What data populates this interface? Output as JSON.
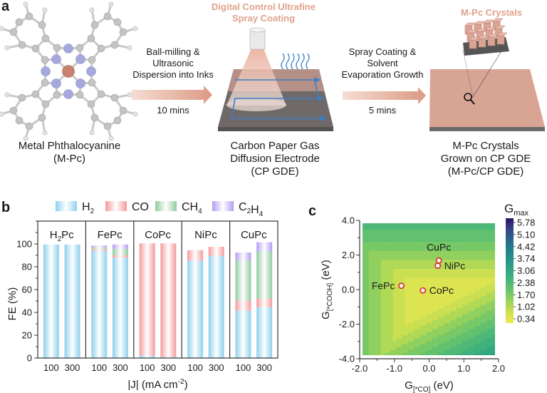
{
  "panel_a": {
    "letter": "a",
    "molecule_caption_line1": "Metal Phthalocyanine",
    "molecule_caption_line2": "(M-Pc)",
    "step1_line1": "Ball-milling &",
    "step1_line2": "Ultrasonic",
    "step1_line3": "Dispersion into Inks",
    "step1_time": "10 mins",
    "spray_title_line1": "Digital Control Ultrafine",
    "spray_title_line2": "Spray Coating",
    "gde_caption_line1": "Carbon Paper Gas",
    "gde_caption_line2": "Diffusion Electrode",
    "gde_caption_line3": "(CP GDE)",
    "step2_line1": "Spray Coating &",
    "step2_line2": "Solvent",
    "step2_line3": "Evaporation Growth",
    "step2_time": "5 mins",
    "crystal_title": "M-Pc Crystals",
    "crystal_caption_line1": "M-Pc Crystals",
    "crystal_caption_line2": "Grown on CP GDE",
    "crystal_caption_line3": "(M-Pc/CP GDE)",
    "colors": {
      "accent": "#e0a38c",
      "metal": "#c8826e",
      "nitrogen": "#a6a8dd",
      "carbon": "#c4c4c4",
      "hydrogen": "#e2e2e2",
      "paper_dark": "#6e6a6a",
      "paper_pink": "#d9a391",
      "flow_blue": "#3d7fc4"
    }
  },
  "chart_data": [
    {
      "panel": "b",
      "type": "bar",
      "stacked": true,
      "title": "",
      "xlabel": "|J| (mA cm⁻²)",
      "ylabel": "FE (%)",
      "ylim": [
        0,
        120
      ],
      "yticks": [
        "0",
        "20",
        "40",
        "60",
        "80",
        "100"
      ],
      "groups": [
        "H₂Pc",
        "FePc",
        "CoPc",
        "NiPc",
        "CuPc"
      ],
      "categories": [
        "100",
        "300",
        "100",
        "300",
        "100",
        "300",
        "100",
        "300",
        "100",
        "300"
      ],
      "legend": {
        "placement": "top",
        "entries": [
          "H₂",
          "CO",
          "CH₄",
          "C₂H₄"
        ]
      },
      "series": [
        {
          "name": "H2",
          "color": "#8fd0ef",
          "values": [
            99.5,
            99.5,
            94,
            88,
            2,
            1,
            85.5,
            89.5,
            41.5,
            44.5
          ]
        },
        {
          "name": "CO",
          "color": "#f59a9a",
          "values": [
            0,
            0,
            1.5,
            2,
            98.5,
            99.5,
            9,
            8,
            9,
            7.5
          ]
        },
        {
          "name": "CH4",
          "color": "#8fcc9e",
          "values": [
            0,
            0,
            1.5,
            5.5,
            0,
            0,
            0,
            0,
            35,
            41.5
          ]
        },
        {
          "name": "C2H4",
          "color": "#b49cf2",
          "values": [
            0,
            0,
            1.5,
            4,
            0,
            0,
            0,
            0,
            7,
            8
          ]
        }
      ]
    },
    {
      "panel": "c",
      "type": "heatmap",
      "title": "",
      "xlabel": "G[*CO] (eV)",
      "ylabel": "G[*COOH] (eV)",
      "xlim": [
        -2.0,
        2.0
      ],
      "ylim": [
        -4.0,
        4.0
      ],
      "xticks": [
        "-2.0",
        "-1.0",
        "0.0",
        "1.0",
        "2.0"
      ],
      "yticks": [
        "-4.0",
        "-2.0",
        "0.0",
        "2.0",
        "4.0"
      ],
      "colorbar": {
        "label": "Gmax",
        "ticks": [
          "5.78",
          "5.10",
          "4.42",
          "3.74",
          "3.06",
          "2.38",
          "1.70",
          "1.02",
          "0.34"
        ],
        "range": [
          0.0,
          6.1
        ],
        "colormap": "viridis_r"
      },
      "points": [
        {
          "name": "CuPc",
          "x": 0.28,
          "y": 1.68
        },
        {
          "name": "NiPc",
          "x": 0.25,
          "y": 1.38
        },
        {
          "name": "FePc",
          "x": -0.8,
          "y": 0.22
        },
        {
          "name": "CoPc",
          "x": -0.18,
          "y": -0.05
        }
      ],
      "point_color": "#d6382e"
    }
  ],
  "panel_b": {
    "letter": "b",
    "xlabel_main": "|J| (mA cm",
    "xlabel_sup": "-2",
    "xlabel_end": ")",
    "ylabel": "FE (%)"
  },
  "panel_c": {
    "letter": "c",
    "xlabel_main": "G",
    "xlabel_sub": "[*CO]",
    "xlabel_end": " (eV)",
    "ylabel_main": "G",
    "ylabel_sub": "[*COOH]",
    "ylabel_end": " (eV)",
    "cbar_main": "G",
    "cbar_sub": "max"
  }
}
